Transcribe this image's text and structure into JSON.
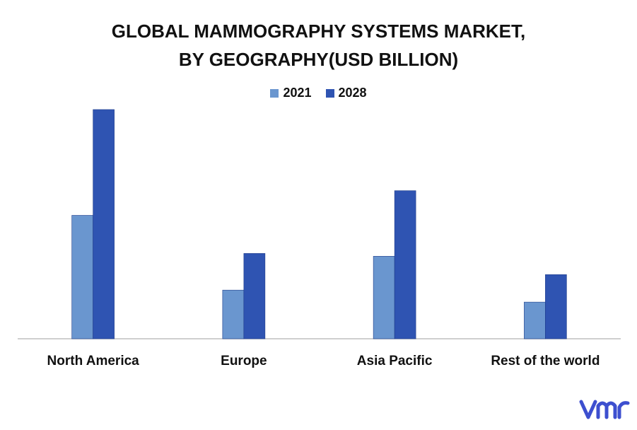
{
  "chart_data": {
    "type": "bar",
    "title_line1": "GLOBAL MAMMOGRAPHY SYSTEMS MARKET,",
    "title_line2": "BY GEOGRAPHY(USD BILLION)",
    "categories": [
      "North America",
      "Europe",
      "Asia Pacific",
      "Rest of the world"
    ],
    "series": [
      {
        "name": "2021",
        "color": "#6a96cf",
        "values": [
          1.75,
          0.69,
          1.17,
          0.52
        ]
      },
      {
        "name": "2028",
        "color": "#2f54b2",
        "values": [
          3.25,
          1.21,
          2.1,
          0.91
        ]
      }
    ],
    "ylim": [
      0,
      3.5
    ],
    "grid": false,
    "legend_position": "top-center",
    "xlabel": "",
    "ylabel": ""
  },
  "logo": {
    "name": "vmr-logo",
    "text": "vmr",
    "color": "#3d4fcf"
  }
}
